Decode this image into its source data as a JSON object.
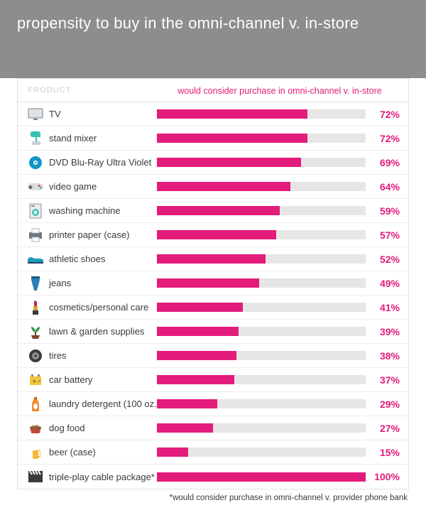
{
  "header": {
    "title": "propensity to buy in the omni-channel v. in-store"
  },
  "table": {
    "left_header": "PRODUCT",
    "right_header": "would consider purchase in omni-channel v. in-store",
    "bar_track_color": "#e6e6e6",
    "bar_fill_color": "#e31b7b",
    "pct_color": "#e31b7b",
    "rows": [
      {
        "label": "TV",
        "pct": 72,
        "icon": "tv"
      },
      {
        "label": "stand mixer",
        "pct": 72,
        "icon": "mixer"
      },
      {
        "label": "DVD Blu-Ray Ultra Violet",
        "pct": 69,
        "icon": "disc"
      },
      {
        "label": "video game",
        "pct": 64,
        "icon": "gamepad"
      },
      {
        "label": "washing machine",
        "pct": 59,
        "icon": "washer"
      },
      {
        "label": "printer paper (case)",
        "pct": 57,
        "icon": "printer"
      },
      {
        "label": "athletic shoes",
        "pct": 52,
        "icon": "shoe"
      },
      {
        "label": "jeans",
        "pct": 49,
        "icon": "jeans"
      },
      {
        "label": "cosmetics/personal care",
        "pct": 41,
        "icon": "lipstick"
      },
      {
        "label": "lawn & garden supplies",
        "pct": 39,
        "icon": "plant"
      },
      {
        "label": "tires",
        "pct": 38,
        "icon": "tire"
      },
      {
        "label": "car battery",
        "pct": 37,
        "icon": "battery"
      },
      {
        "label": "laundry detergent (100 oz.)",
        "pct": 29,
        "icon": "detergent"
      },
      {
        "label": "dog food",
        "pct": 27,
        "icon": "dogfood"
      },
      {
        "label": "beer (case)",
        "pct": 15,
        "icon": "beer"
      },
      {
        "label": "triple-play cable package*",
        "pct": 100,
        "icon": "clapper"
      }
    ]
  },
  "footnote": "*would consider purchase in omni-channel v. provider phone bank"
}
